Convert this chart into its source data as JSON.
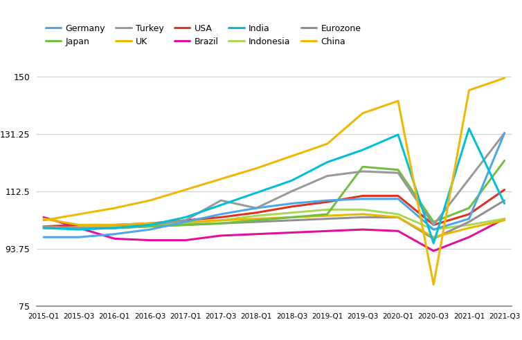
{
  "x_labels": [
    "2015-Q1",
    "2015-Q3",
    "2016-Q1",
    "2016-Q3",
    "2017-Q1",
    "2017-Q3",
    "2018-Q1",
    "2018-Q3",
    "2019-Q1",
    "2019-Q3",
    "2020-Q1",
    "2020-Q3",
    "2021-Q1",
    "2021-Q3"
  ],
  "series": {
    "Germany": {
      "color": "#4da6e8",
      "values": [
        97.5,
        97.5,
        98.5,
        100.0,
        102.5,
        105.0,
        107.0,
        108.5,
        109.5,
        110.0,
        110.0,
        100.0,
        103.5,
        131.5
      ]
    },
    "Japan": {
      "color": "#70c040",
      "values": [
        100.5,
        100.5,
        100.5,
        101.0,
        101.5,
        102.0,
        103.0,
        104.0,
        105.0,
        120.5,
        119.5,
        102.5,
        107.0,
        122.5
      ]
    },
    "Turkey": {
      "color": "#999999",
      "values": [
        101.0,
        100.5,
        100.5,
        101.5,
        103.0,
        109.5,
        107.0,
        112.5,
        117.5,
        119.0,
        118.5,
        101.5,
        116.5,
        131.5
      ]
    },
    "UK": {
      "color": "#e8b800",
      "values": [
        103.5,
        101.5,
        101.5,
        102.0,
        102.5,
        103.0,
        103.5,
        104.0,
        104.5,
        105.0,
        104.0,
        97.5,
        100.5,
        103.0
      ]
    },
    "USA": {
      "color": "#e03020",
      "values": [
        101.0,
        101.5,
        101.5,
        102.0,
        103.0,
        104.0,
        105.5,
        107.5,
        109.0,
        111.0,
        111.0,
        101.5,
        105.0,
        113.0
      ]
    },
    "Brazil": {
      "color": "#e0109a",
      "values": [
        104.0,
        100.5,
        97.0,
        96.5,
        96.5,
        98.0,
        98.5,
        99.0,
        99.5,
        100.0,
        99.5,
        93.0,
        97.5,
        103.5
      ]
    },
    "India": {
      "color": "#00c0d8",
      "values": [
        100.5,
        100.0,
        100.5,
        101.5,
        104.0,
        108.0,
        112.0,
        116.0,
        122.0,
        126.0,
        131.0,
        95.5,
        133.0,
        108.5
      ]
    },
    "Indonesia": {
      "color": "#a8d858",
      "values": [
        101.0,
        101.0,
        101.0,
        101.5,
        102.0,
        103.0,
        104.5,
        105.5,
        106.5,
        106.5,
        105.0,
        100.0,
        101.5,
        103.5
      ]
    },
    "Eurozone": {
      "color": "#909090",
      "values": [
        100.5,
        100.5,
        100.5,
        101.0,
        101.5,
        102.0,
        102.5,
        103.0,
        103.5,
        104.0,
        104.0,
        97.0,
        102.5,
        109.5
      ]
    },
    "China": {
      "color": "#f0b800",
      "values": [
        103.0,
        105.0,
        107.0,
        109.5,
        113.0,
        116.5,
        120.0,
        124.0,
        128.0,
        138.0,
        142.0,
        82.0,
        145.5,
        149.5
      ]
    }
  },
  "ylim": [
    75,
    155
  ],
  "yticks": [
    75,
    93.75,
    112.5,
    131.25,
    150
  ],
  "background_color": "#ffffff",
  "legend_row1": [
    "Germany",
    "Japan",
    "Turkey",
    "UK",
    "USA"
  ],
  "legend_row2": [
    "Brazil",
    "India",
    "Indonesia",
    "Eurozone",
    "China"
  ]
}
